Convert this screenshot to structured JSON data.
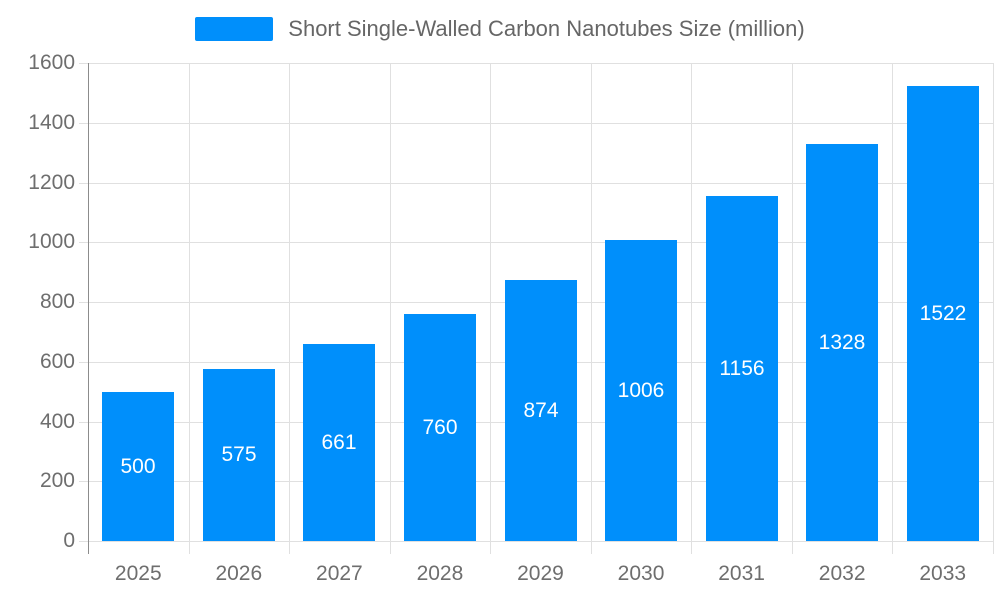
{
  "chart_data": {
    "type": "bar",
    "title": "Short Single-Walled Carbon Nanotubes Size (million)",
    "legend": [
      "Short Single-Walled Carbon Nanotubes Size (million)"
    ],
    "legend_position": "top-center",
    "categories": [
      "2025",
      "2026",
      "2027",
      "2028",
      "2029",
      "2030",
      "2031",
      "2032",
      "2033"
    ],
    "series": [
      {
        "name": "Short Single-Walled Carbon Nanotubes Size (million)",
        "values": [
          500,
          575,
          661,
          760,
          874,
          1006,
          1156,
          1328,
          1522
        ]
      }
    ],
    "xlabel": "",
    "ylabel": "",
    "ylim": [
      0,
      1600
    ],
    "y_ticks": [
      0,
      200,
      400,
      600,
      800,
      1000,
      1200,
      1400,
      1600
    ],
    "grid": true,
    "bar_labels_inside": true,
    "colors": {
      "bar": "#008FFB",
      "grid": "#e0e0e0",
      "axis_line": "#8c8c8c",
      "axis_label": "#6e6e6e",
      "legend_text": "#666666",
      "bar_value_label": "#ffffff",
      "background": "#ffffff"
    }
  }
}
